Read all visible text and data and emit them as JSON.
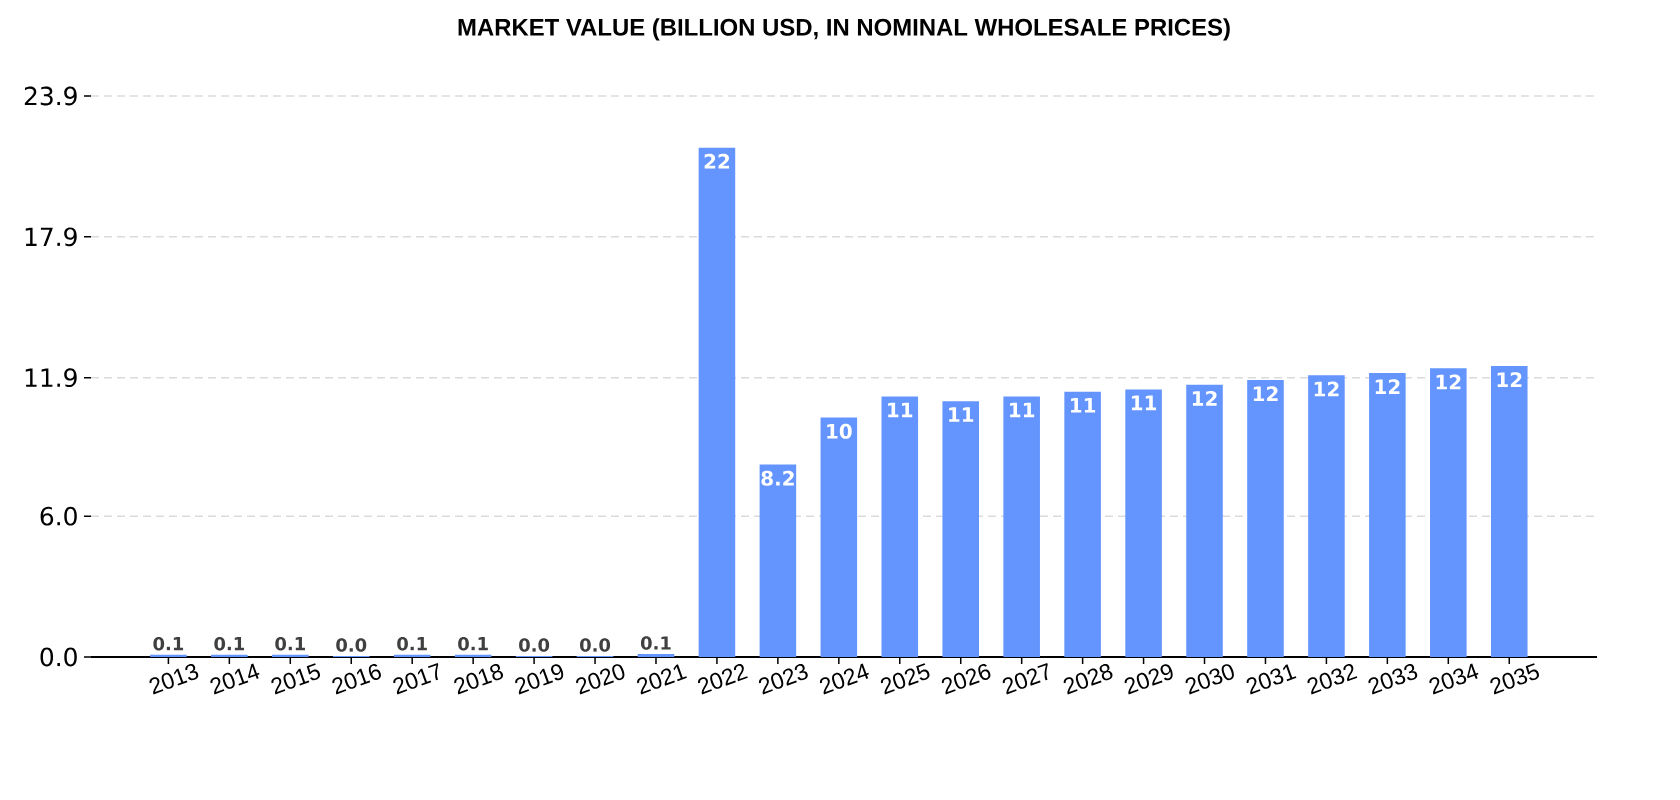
{
  "chart_data": {
    "type": "bar",
    "title": "MARKET VALUE (BILLION USD, IN NOMINAL WHOLESALE PRICES)",
    "categories": [
      "2013",
      "2014",
      "2015",
      "2016",
      "2017",
      "2018",
      "2019",
      "2020",
      "2021",
      "2022",
      "2023",
      "2024",
      "2025",
      "2026",
      "2027",
      "2028",
      "2029",
      "2030",
      "2031",
      "2032",
      "2033",
      "2034",
      "2035"
    ],
    "values": [
      0.1,
      0.1,
      0.1,
      0.04,
      0.1,
      0.1,
      0.04,
      0.04,
      0.13,
      21.7,
      8.2,
      10.2,
      11.1,
      10.9,
      11.1,
      11.3,
      11.4,
      11.6,
      11.8,
      12.0,
      12.1,
      12.3,
      12.4
    ],
    "value_labels": [
      "0.1",
      "0.1",
      "0.1",
      "0.0",
      "0.1",
      "0.1",
      "0.0",
      "0.0",
      "0.1",
      "22",
      "8.2",
      "10",
      "11",
      "11",
      "11",
      "11",
      "11",
      "12",
      "12",
      "12",
      "12",
      "12",
      "12"
    ],
    "color": "#6495ff",
    "ylim": [
      0,
      23.9
    ],
    "yticks": [
      {
        "value": 0,
        "label": "0.0"
      },
      {
        "value": 6,
        "label": "6.0"
      },
      11.9,
      17.9,
      23.9
    ],
    "grid": "y"
  }
}
